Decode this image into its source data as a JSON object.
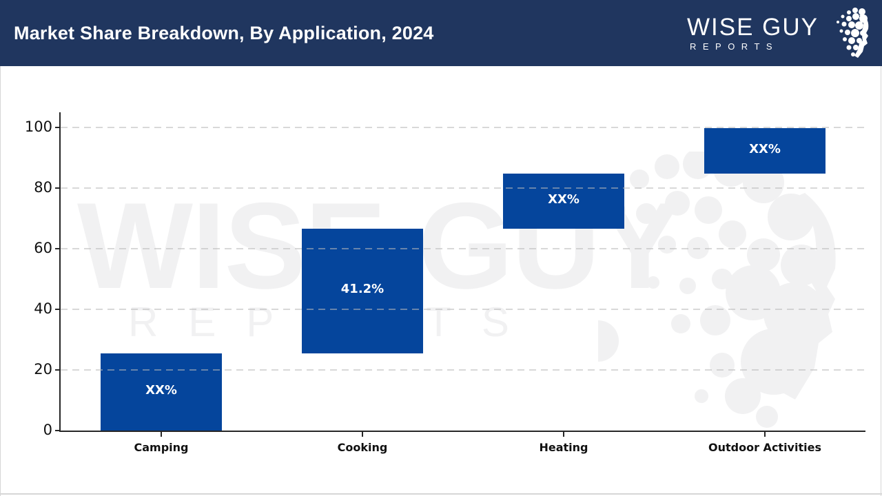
{
  "header": {
    "title": "Market Share Breakdown, By Application, 2024",
    "logo": {
      "line1": "WISE GUY",
      "line2": "REPORTS",
      "head_icon": "dotted-head-profile"
    }
  },
  "watermark": {
    "line1": "WISE GUY",
    "line2": "REPORTS",
    "head_icon": "dotted-head-profile"
  },
  "colors": {
    "header_bg": "#20365f",
    "bar": "#05459c",
    "grid": "#d9d9d9",
    "axis": "#262626",
    "bar_label": "#ffffff",
    "watermark": "#f1f1f2"
  },
  "chart_data": {
    "type": "bar",
    "subtype": "floating-waterfall",
    "title": "Market Share Breakdown, By Application, 2024",
    "categories": [
      "Camping",
      "Cooking",
      "Heating",
      "Outdoor Activities"
    ],
    "series": [
      {
        "name": "Market Share",
        "segments": [
          {
            "category": "Camping",
            "start": 0,
            "end": 25.5,
            "value": 25.5,
            "label": "XX%"
          },
          {
            "category": "Cooking",
            "start": 25.5,
            "end": 66.7,
            "value": 41.2,
            "label": "41.2%"
          },
          {
            "category": "Heating",
            "start": 66.7,
            "end": 84.8,
            "value": 18.1,
            "label": "XX%"
          },
          {
            "category": "Outdoor Activities",
            "start": 84.8,
            "end": 99.8,
            "value": 15.0,
            "label": "XX%"
          }
        ]
      }
    ],
    "bar_labels": [
      "XX%",
      "41.2%",
      "XX%",
      "XX%"
    ],
    "xlabel": "",
    "ylabel": "",
    "ylim": [
      0,
      105
    ],
    "yticks": [
      "0",
      "20",
      "40",
      "60",
      "80",
      "100"
    ],
    "grid": "horizontal-dashed",
    "legend": "none"
  }
}
